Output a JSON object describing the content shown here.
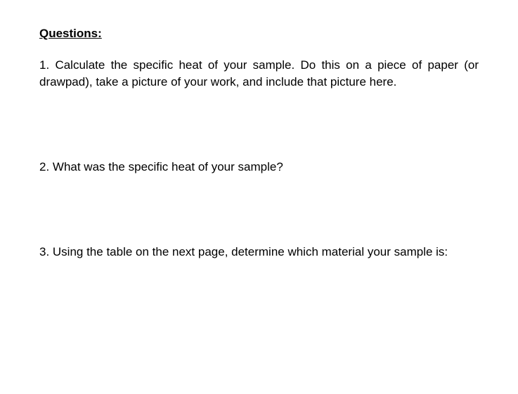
{
  "heading": "Questions:",
  "questions": {
    "q1": "1. Calculate the specific heat of your sample. Do this on a piece of paper (or drawpad), take a picture of your work, and include that picture here.",
    "q2": "2. What was the specific heat of your sample?",
    "q3": "3. Using the table on the next page, determine which material your sample is:"
  },
  "colors": {
    "text": "#000000",
    "background": "#ffffff"
  },
  "font": {
    "family": "Arial",
    "size_pt": 12,
    "heading_weight": "bold",
    "body_weight": "normal"
  }
}
